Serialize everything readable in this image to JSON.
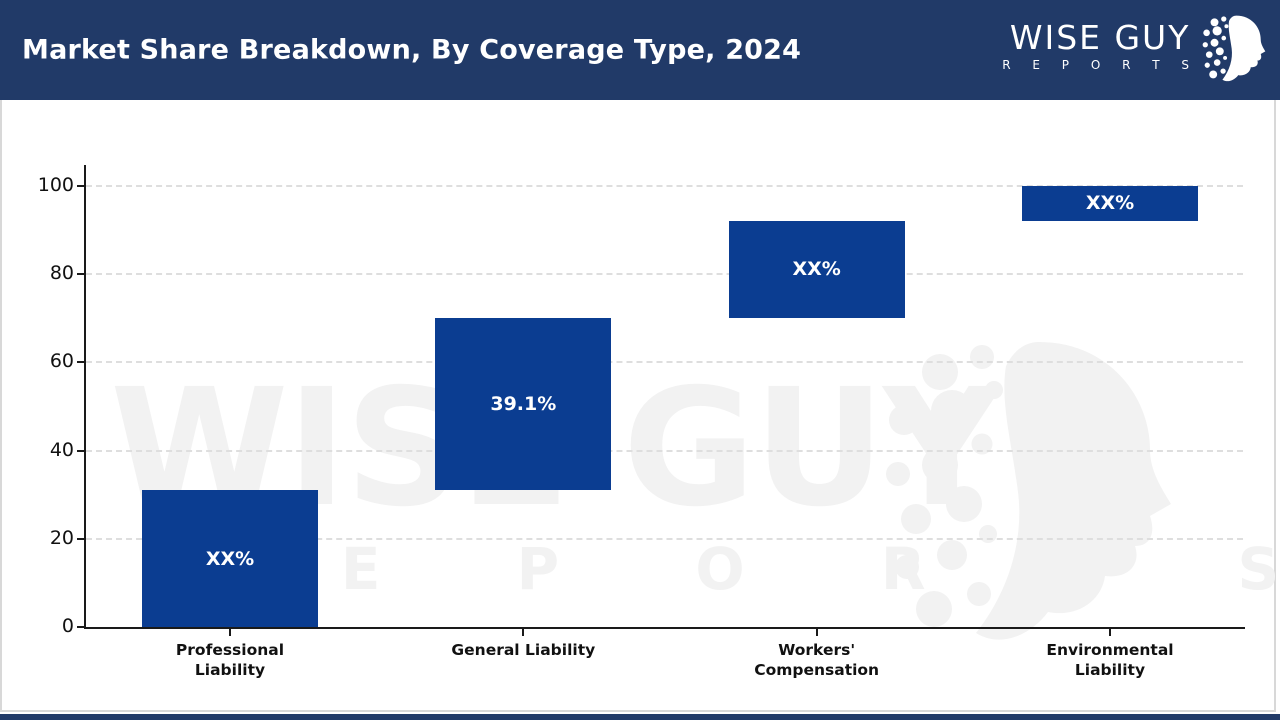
{
  "header": {
    "bg_color": "#213a68",
    "title": "Market Share Breakdown, By Coverage Type, 2024",
    "logo": {
      "name": "WISE GUY",
      "sub": "R E P O R T S"
    }
  },
  "watermark": {
    "name": "WISE GUY",
    "sub": "R E P O R T S"
  },
  "chart_data": {
    "type": "bar",
    "subtype": "waterfall-stacked-breakdown",
    "title": "Market Share Breakdown, By Coverage Type, 2024",
    "categories": [
      "Professional Liability",
      "General Liability",
      "Workers' Compensation",
      "Environmental Liability"
    ],
    "category_label_lines": [
      [
        "Professional",
        "Liability"
      ],
      [
        "General Liability"
      ],
      [
        "Workers'",
        "Compensation"
      ],
      [
        "Environmental",
        "Liability"
      ]
    ],
    "segments": [
      {
        "category": "Professional Liability",
        "start": 0,
        "end": 31,
        "label": "XX%"
      },
      {
        "category": "General Liability",
        "start": 31,
        "end": 70.1,
        "label": "39.1%"
      },
      {
        "category": "Workers' Compensation",
        "start": 70.1,
        "end": 92.1,
        "label": "XX%"
      },
      {
        "category": "Environmental Liability",
        "start": 92.1,
        "end": 100,
        "label": "XX%"
      }
    ],
    "ylim": [
      0,
      100
    ],
    "yticks": [
      0,
      20,
      40,
      60,
      80,
      100
    ],
    "xlabel": "",
    "ylabel": "",
    "grid": "horizontal-dashed",
    "legend": "none",
    "bar_color": "#0b3d91",
    "bar_label_color": "#ffffff"
  }
}
